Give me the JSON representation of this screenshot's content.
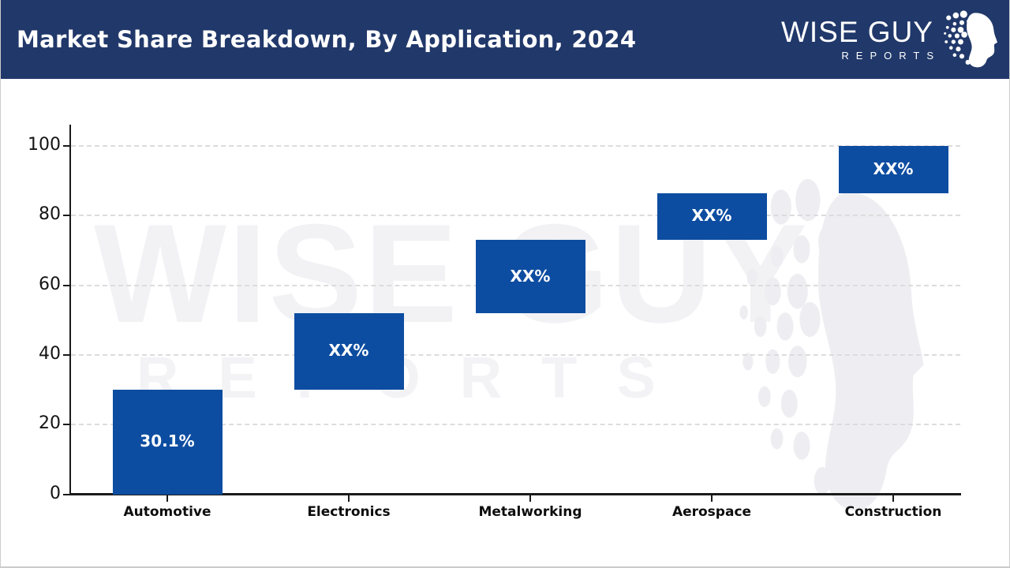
{
  "header": {
    "title": "Market Share Breakdown, By Application, 2024",
    "logo": {
      "name_top": "WISE GUY",
      "name_bottom": "REPORTS"
    }
  },
  "watermark": {
    "line1": "WISE GUY",
    "line2": "REPORTS"
  },
  "chart_data": {
    "type": "bar",
    "subtype": "waterfall-step",
    "title": "Market Share Breakdown, By Application, 2024",
    "xlabel": "",
    "ylabel": "",
    "categories": [
      "Automotive",
      "Electronics",
      "Metalworking",
      "Aerospace",
      "Construction"
    ],
    "series": [
      {
        "name": "Market Share (%)",
        "segments": [
          {
            "category": "Automotive",
            "start": 0,
            "end": 30.1,
            "label": "30.1%"
          },
          {
            "category": "Electronics",
            "start": 30.1,
            "end": 52,
            "label": "XX%"
          },
          {
            "category": "Metalworking",
            "start": 52,
            "end": 73,
            "label": "XX%"
          },
          {
            "category": "Aerospace",
            "start": 73,
            "end": 86.5,
            "label": "XX%"
          },
          {
            "category": "Construction",
            "start": 86.5,
            "end": 100,
            "label": "XX%"
          }
        ]
      }
    ],
    "yticks": [
      0,
      20,
      40,
      60,
      80,
      100
    ],
    "ylim": [
      0,
      106
    ],
    "grid": "horizontal-dashed",
    "legend": "none",
    "bar_color": "#0d4da1",
    "bar_label_color": "#ffffff"
  },
  "colors": {
    "header_bg": "#21386a",
    "bar": "#0d4da1",
    "grid": "#dcdcdc",
    "axis": "#1a1a1a",
    "watermark": "#f2f2f5"
  }
}
